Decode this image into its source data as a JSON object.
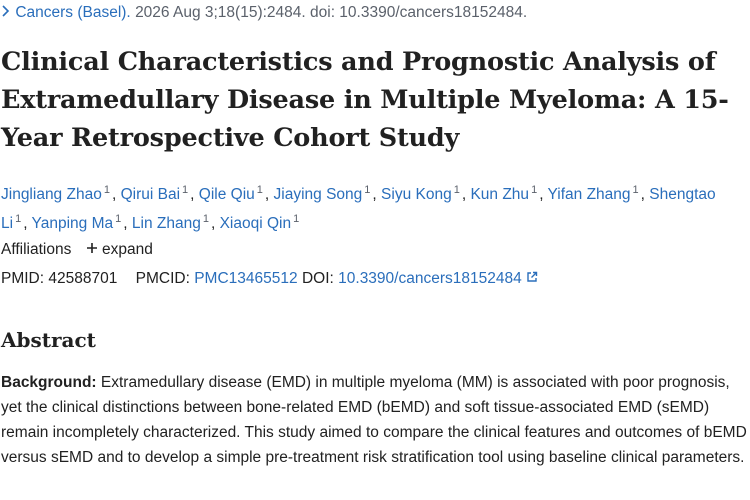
{
  "citation": {
    "journal": "Cancers (Basel).",
    "details": "2026 Aug 3;18(15):2484. doi: 10.3390/cancers18152484."
  },
  "title": "Clinical Characteristics and Prognostic Analysis of Extramedullary Disease in Multiple Myeloma: A 15-Year Retrospective Cohort Study",
  "authors": [
    {
      "name": "Jingliang Zhao",
      "aff": "1",
      "sep": ","
    },
    {
      "name": "Qirui Bai",
      "aff": "1",
      "sep": ","
    },
    {
      "name": "Qile Qiu",
      "aff": "1",
      "sep": ","
    },
    {
      "name": "Jiaying Song",
      "aff": "1",
      "sep": ","
    },
    {
      "name": "Siyu Kong",
      "aff": "1",
      "sep": ","
    },
    {
      "name": "Kun Zhu",
      "aff": "1",
      "sep": ","
    },
    {
      "name": "Yifan Zhang",
      "aff": "1",
      "sep": ","
    },
    {
      "name": "Shengtao Li",
      "aff": "1",
      "sep": ","
    },
    {
      "name": "Yanping Ma",
      "aff": "1",
      "sep": ","
    },
    {
      "name": "Lin Zhang",
      "aff": "1",
      "sep": ","
    },
    {
      "name": "Xiaoqi Qin",
      "aff": "1"
    }
  ],
  "affiliations": {
    "label": "Affiliations",
    "toggle": "expand"
  },
  "ids": {
    "pmid_label": "PMID:",
    "pmid": "42588701",
    "pmcid_label": "PMCID:",
    "pmcid": "PMC13465512",
    "doi_label": "DOI:",
    "doi": "10.3390/cancers18152484"
  },
  "abstract": {
    "heading": "Abstract",
    "label": "Background:",
    "text": "Extramedullary disease (EMD) in multiple myeloma (MM) is associated with poor prognosis, yet the clinical distinctions between bone-related EMD (bEMD) and soft tissue-associated EMD (sEMD) remain incompletely characterized. This study aimed to compare the clinical features and outcomes of bEMD versus sEMD and to develop a simple pre-treatment risk stratification tool using baseline clinical parameters."
  }
}
